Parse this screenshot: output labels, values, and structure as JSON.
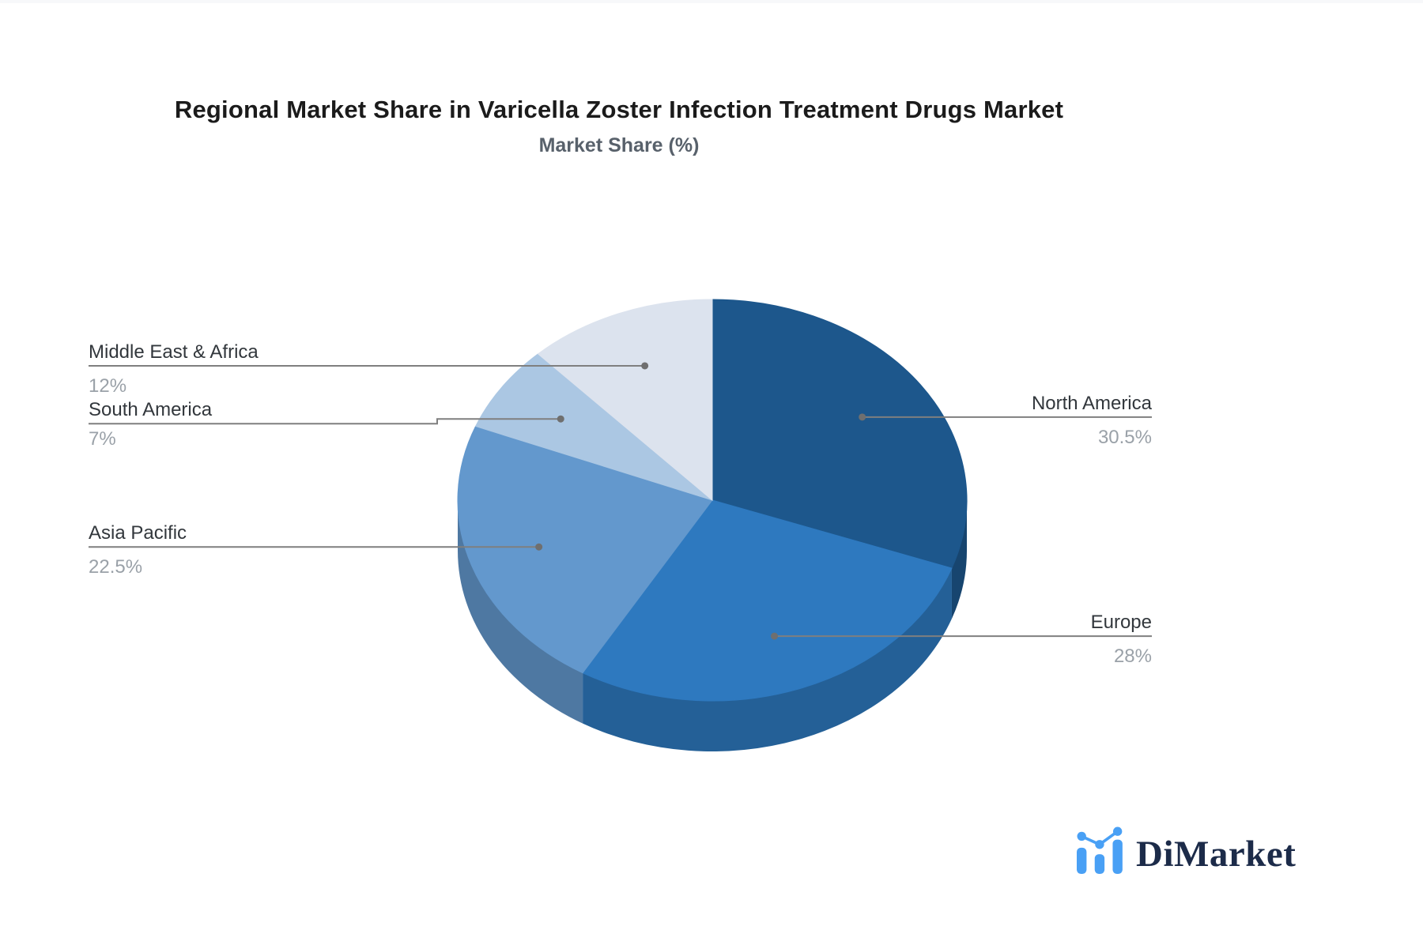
{
  "header": {
    "title": "Regional Market Share in Varicella Zoster Infection Treatment Drugs Market",
    "subtitle": "Market Share (%)"
  },
  "chart_data": {
    "type": "pie",
    "title": "Regional Market Share in Varicella Zoster Infection Treatment Drugs Market",
    "subtitle": "Market Share (%)",
    "unit": "%",
    "start_angle_deg": 0,
    "direction": "clockwise",
    "legend": "none",
    "label_style": "leader-lines-with-dots",
    "effect": "3d-depth",
    "categories": [
      "North America",
      "Europe",
      "Asia Pacific",
      "South America",
      "Middle East & Africa"
    ],
    "values": [
      30.5,
      28,
      22.5,
      7,
      12
    ],
    "series": [
      {
        "name": "North America",
        "value": 30.5,
        "display": "30.5%",
        "color": "#1D578C"
      },
      {
        "name": "Europe",
        "value": 28,
        "display": "28%",
        "color": "#2E79BF"
      },
      {
        "name": "Asia Pacific",
        "value": 22.5,
        "display": "22.5%",
        "color": "#6398CD"
      },
      {
        "name": "South America",
        "value": 7,
        "display": "7%",
        "color": "#ABC7E3"
      },
      {
        "name": "Middle East & Africa",
        "value": 12,
        "display": "12%",
        "color": "#DCE3EE"
      }
    ]
  },
  "branding": {
    "name": "DiMarket",
    "icon": "bar-chart-logo-icon",
    "icon_color": "#49A0F5",
    "text_color": "#1C2B49"
  },
  "style": {
    "title_color": "#1b1b1b",
    "subtitle_color": "#58616b",
    "label_color": "#32373c",
    "value_color": "#9aa1a8",
    "leader_color": "#7f7f7f",
    "dot_color": "#6f6f6f",
    "background": "#ffffff"
  }
}
